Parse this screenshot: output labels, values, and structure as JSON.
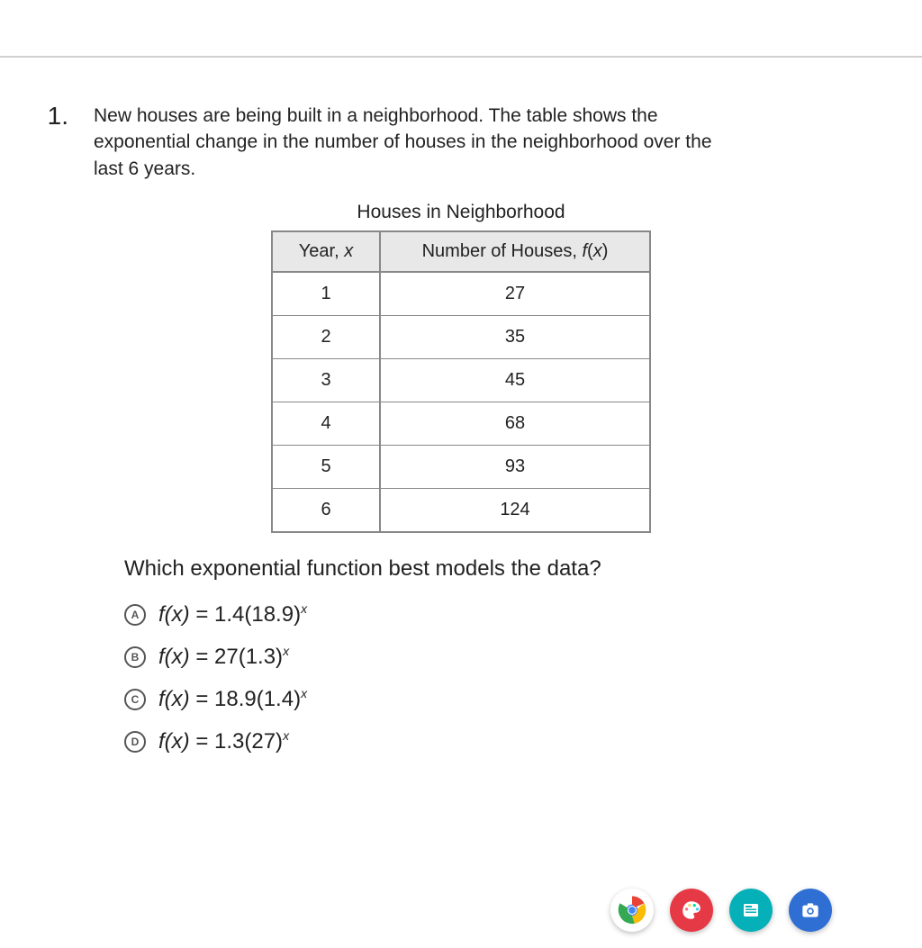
{
  "question": {
    "number": "1.",
    "prompt": "New houses are being built in a neighborhood. The table shows the exponential change in the number of houses in the neighborhood over the last 6 years.",
    "table": {
      "title": "Houses in Neighborhood",
      "columns": [
        "Year, x",
        "Number of Houses, f(x)"
      ],
      "rows": [
        [
          "1",
          "27"
        ],
        [
          "2",
          "35"
        ],
        [
          "3",
          "45"
        ],
        [
          "4",
          "68"
        ],
        [
          "5",
          "93"
        ],
        [
          "6",
          "124"
        ]
      ]
    },
    "followup": "Which exponential function best models the data?",
    "choices": [
      {
        "letter": "A",
        "fx": "f(x)",
        "eq": " = 1.4(18.9)",
        "exp": "x"
      },
      {
        "letter": "B",
        "fx": "f(x)",
        "eq": " = 27(1.3)",
        "exp": "x"
      },
      {
        "letter": "C",
        "fx": "f(x)",
        "eq": " = 18.9(1.4)",
        "exp": "x"
      },
      {
        "letter": "D",
        "fx": "f(x)",
        "eq": " = 1.3(27)",
        "exp": "x"
      }
    ]
  },
  "taskbar": {
    "icons": [
      {
        "name": "chrome-icon",
        "bg": "#ffffff"
      },
      {
        "name": "paint-icon",
        "bg": "#e63946"
      },
      {
        "name": "news-icon",
        "bg": "#06b0b8"
      },
      {
        "name": "camera-icon",
        "bg": "#2f6fd4"
      }
    ]
  }
}
